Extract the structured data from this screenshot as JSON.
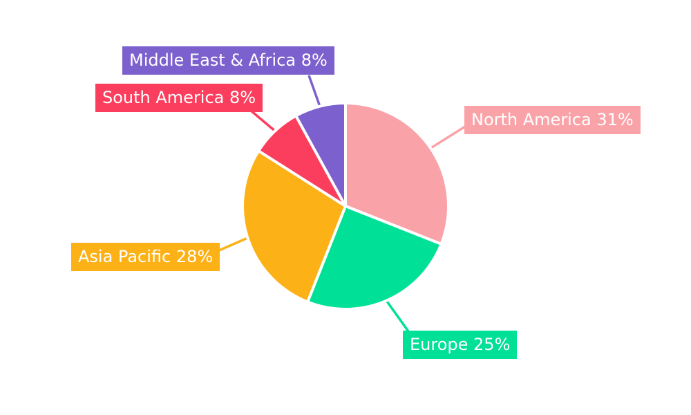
{
  "chart_data": {
    "type": "pie",
    "title": "",
    "categories": [
      "North America",
      "Europe",
      "Asia Pacific",
      "South America",
      "Middle East & Africa"
    ],
    "values": [
      31,
      25,
      28,
      8,
      8
    ],
    "unit": "%",
    "colors": [
      "#F9A3A8",
      "#00E096",
      "#FCB116",
      "#FB3E5D",
      "#7B60CE"
    ],
    "slice_labels": [
      "North America 31%",
      "Europe 25%",
      "Asia Pacific 28%",
      "South America 8%",
      "Middle East & Africa 8%"
    ],
    "start_angle": "top (12 o'clock)",
    "direction": "clockwise",
    "legend_position": "none",
    "background_color": "#FFFFFF",
    "label_style": {
      "text_color": "#FFFFFF",
      "box": "filled rectangle matching slice color",
      "leader_lines": "straight line from slice mid-edge to label box, colored as slice"
    }
  }
}
